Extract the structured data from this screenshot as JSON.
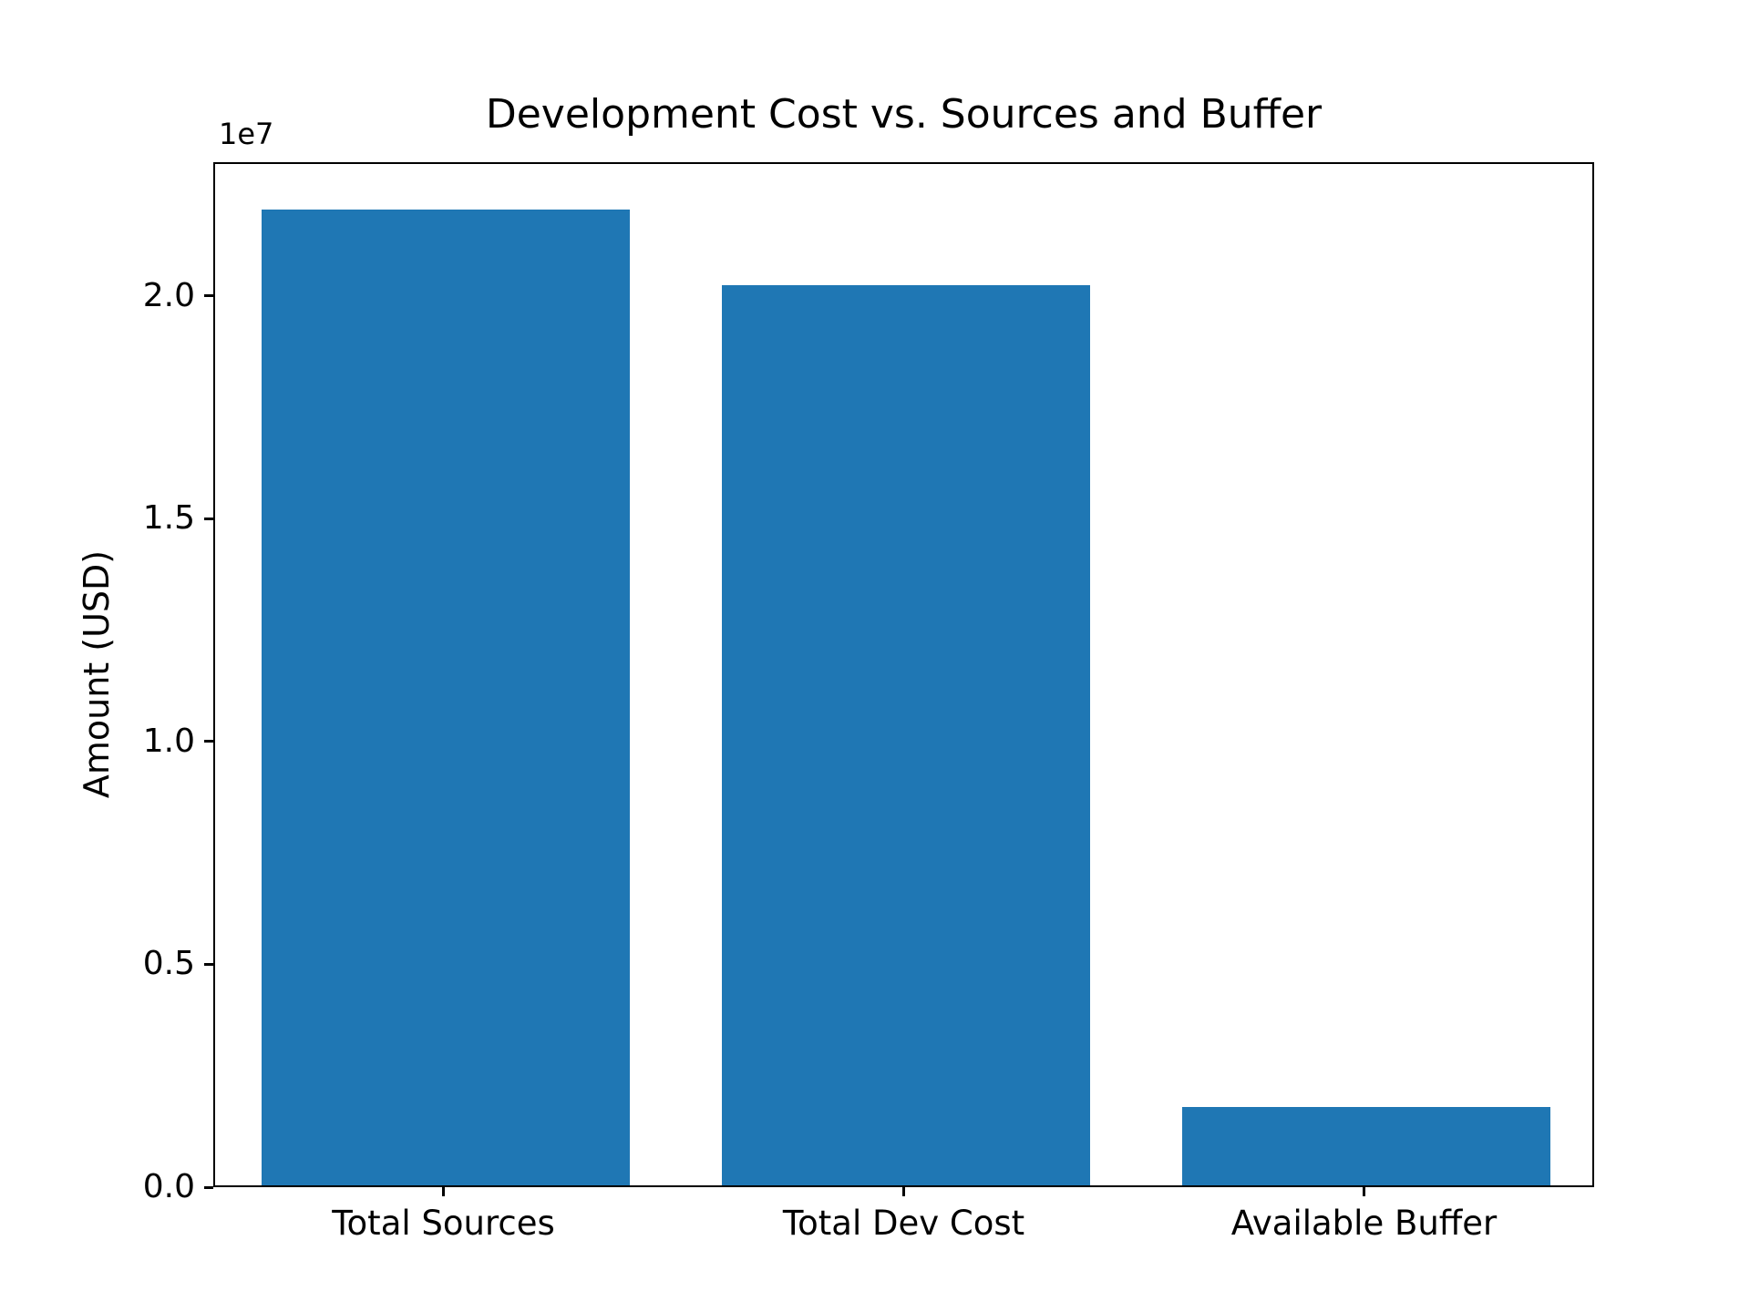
{
  "chart_data": {
    "type": "bar",
    "title": "Development Cost vs. Sources and Buffer",
    "categories": [
      "Total Sources",
      "Total Dev Cost",
      "Available Buffer"
    ],
    "values": [
      21900000,
      20200000,
      1750000
    ],
    "xlabel": "",
    "ylabel": "Amount (USD)",
    "ylim": [
      0,
      23000000
    ],
    "yticks": [
      0,
      5000000,
      10000000,
      15000000,
      20000000
    ],
    "ytick_labels": [
      "0.0",
      "0.5",
      "1.0",
      "1.5",
      "2.0"
    ],
    "offset_text": "1e7",
    "bar_color": "#1f77b4",
    "bar_width_fraction": 0.8,
    "grid": false,
    "legend": null,
    "background_color": "#ffffff",
    "spine_color": "#000000"
  }
}
